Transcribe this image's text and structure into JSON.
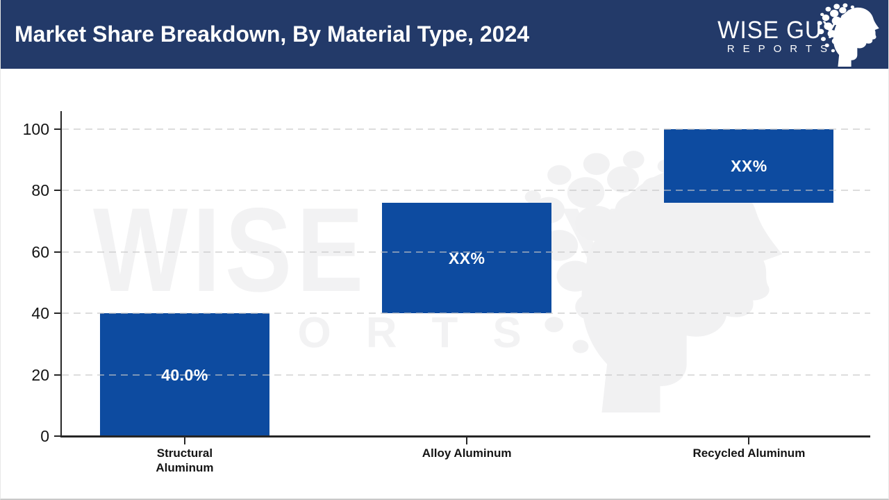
{
  "header": {
    "title": "Market Share Breakdown, By Material Type, 2024",
    "background_color": "#233A69",
    "logo": {
      "brand": "WISE GUY",
      "sub_brand": "REPORTS"
    }
  },
  "watermark": {
    "brand": "WISE GUY",
    "sub_brand": "REPORTS"
  },
  "chart_data": {
    "type": "bar",
    "subtype": "floating-waterfall",
    "title": "Market Share Breakdown, By Material Type, 2024",
    "categories": [
      "Structural Aluminum",
      "Alloy Aluminum",
      "Recycled Aluminum"
    ],
    "xtick_lines": [
      [
        "Structural",
        "Aluminum"
      ],
      [
        "Alloy Aluminum"
      ],
      [
        "Recycled Aluminum"
      ]
    ],
    "bars": [
      {
        "category": "Structural Aluminum",
        "start": 0,
        "end": 40,
        "label": "40.0%"
      },
      {
        "category": "Alloy Aluminum",
        "start": 40,
        "end": 76,
        "label": "XX%"
      },
      {
        "category": "Recycled Aluminum",
        "start": 76,
        "end": 100,
        "label": "XX%"
      }
    ],
    "bar_color": "#0D4BA0",
    "label_color": "#FFFFFF",
    "ylim": [
      0,
      100
    ],
    "yticks": [
      0,
      20,
      40,
      60,
      80,
      100
    ],
    "grid": "horizontal-dashed",
    "xlabel": "",
    "ylabel": ""
  }
}
